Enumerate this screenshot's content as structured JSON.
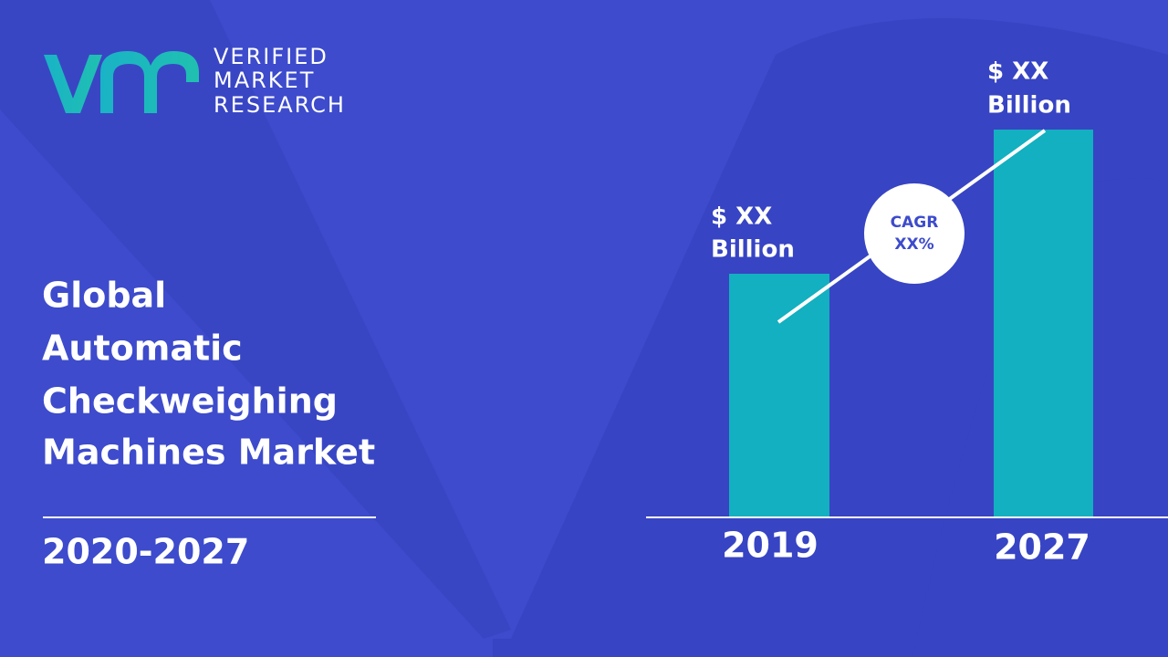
{
  "logo": {
    "lines": [
      "VERIFIED",
      "MARKET",
      "RESEARCH"
    ]
  },
  "title": {
    "lines": [
      "Global",
      "Automatic",
      "Checkweighing",
      "Machines Market"
    ]
  },
  "period": "2020-2027",
  "bars": [
    {
      "label": [
        "$ XX",
        "Billion"
      ],
      "year": "2019"
    },
    {
      "label": [
        "$ XX",
        "Billion"
      ],
      "year": "2027"
    }
  ],
  "cagr": {
    "lines": [
      "CAGR",
      "XX%"
    ]
  }
}
